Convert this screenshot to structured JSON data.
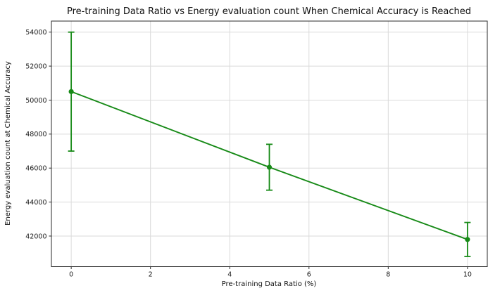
{
  "chart_data": {
    "type": "line",
    "title": "Pre-training Data Ratio vs Energy evaluation count When Chemical Accuracy is Reached",
    "xlabel": "Pre-training Data Ratio (%)",
    "ylabel": "Energy evaluation count at Chemical Accuracy",
    "x": [
      0,
      5,
      10
    ],
    "y": [
      50500,
      46050,
      41800
    ],
    "y_err_low": [
      47000,
      44700,
      40800
    ],
    "y_err_high": [
      54000,
      47400,
      42800
    ],
    "series": [
      {
        "name": "Energy evaluation count at Chemical Accuracy",
        "x": [
          0,
          5,
          10
        ],
        "y": [
          50500,
          46050,
          41800
        ],
        "y_err_low": [
          47000,
          44700,
          40800
        ],
        "y_err_high": [
          54000,
          47400,
          42800
        ]
      }
    ],
    "xlim": [
      -0.5,
      10.5
    ],
    "ylim": [
      40200,
      54650
    ],
    "xticks": [
      0,
      2,
      4,
      6,
      8,
      10
    ],
    "yticks": [
      42000,
      44000,
      46000,
      48000,
      50000,
      52000,
      54000
    ],
    "grid": true,
    "legend": false,
    "line_color": "#178a17",
    "marker": "circle",
    "errorbar_capsize": 4.5
  }
}
